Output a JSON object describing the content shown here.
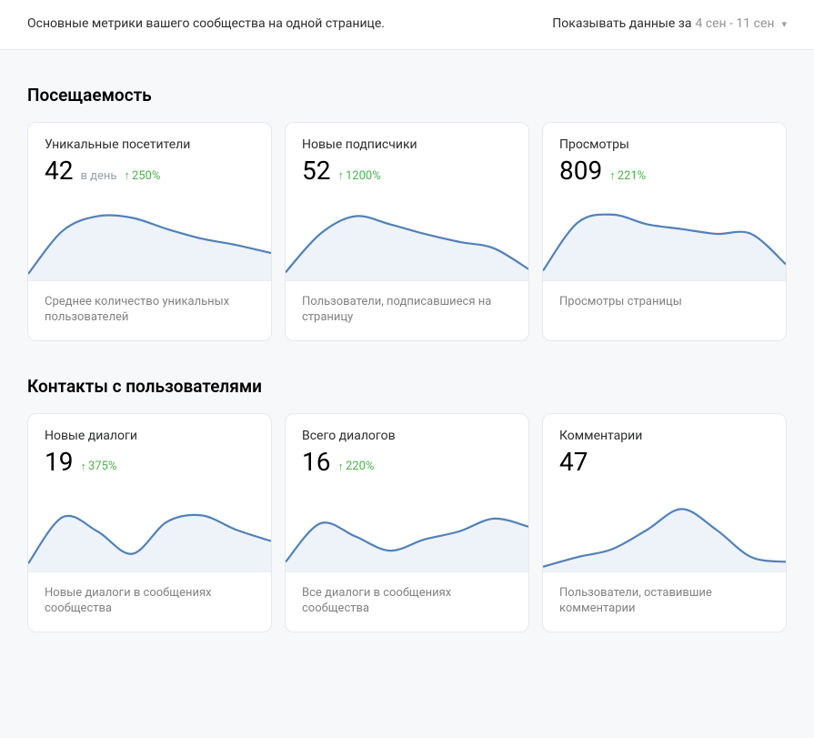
{
  "header": {
    "description": "Основные метрики вашего сообщества на одной странице.",
    "date_label": "Показывать данные за",
    "date_range": "4 сен - 11 сен"
  },
  "colors": {
    "line": "#5181b8",
    "fill": "#eef3f9",
    "trend_up": "#4bb34b",
    "card_border": "#e7e8ec",
    "muted_text": "#828282"
  },
  "sections": [
    {
      "title": "Посещаемость",
      "cards": [
        {
          "title": "Уникальные посетители",
          "value": "42",
          "sublabel": "в день",
          "trend_dir": "up",
          "trend_pct": "250%",
          "footer": "Среднее количество уникальных пользователей",
          "chart": {
            "ylim": [
              0,
              100
            ],
            "points": [
              8,
              62,
              80,
              78,
              64,
              52,
              44,
              34
            ]
          }
        },
        {
          "title": "Новые подписчики",
          "value": "52",
          "sublabel": "",
          "trend_dir": "up",
          "trend_pct": "1200%",
          "footer": "Пользователи, подписавшиеся на страницу",
          "chart": {
            "ylim": [
              0,
              100
            ],
            "points": [
              10,
              58,
              80,
              70,
              58,
              48,
              40,
              14
            ]
          }
        },
        {
          "title": "Просмотры",
          "value": "809",
          "sublabel": "",
          "trend_dir": "up",
          "trend_pct": "221%",
          "footer": "Просмотры страницы",
          "chart": {
            "ylim": [
              0,
              100
            ],
            "points": [
              12,
              72,
              82,
              70,
              64,
              58,
              58,
              20
            ]
          }
        }
      ]
    },
    {
      "title": "Контакты с пользователями",
      "cards": [
        {
          "title": "Новые диалоги",
          "value": "19",
          "sublabel": "",
          "trend_dir": "up",
          "trend_pct": "375%",
          "footer": "Новые диалоги в сообщениях сообщества",
          "chart": {
            "ylim": [
              0,
              100
            ],
            "points": [
              10,
              68,
              50,
              22,
              62,
              70,
              52,
              38
            ]
          }
        },
        {
          "title": "Всего диалогов",
          "value": "16",
          "sublabel": "",
          "trend_dir": "up",
          "trend_pct": "220%",
          "footer": "Все диалоги в сообщениях сообщества",
          "chart": {
            "ylim": [
              0,
              100
            ],
            "points": [
              12,
              60,
              44,
              26,
              40,
              50,
              66,
              56
            ]
          }
        },
        {
          "title": "Комментарии",
          "value": "47",
          "sublabel": "",
          "trend_dir": "",
          "trend_pct": "",
          "footer": "Пользователи, оставившие комментарии",
          "chart": {
            "ylim": [
              0,
              100
            ],
            "points": [
              6,
              18,
              28,
              52,
              78,
              52,
              18,
              12
            ]
          }
        }
      ]
    }
  ]
}
